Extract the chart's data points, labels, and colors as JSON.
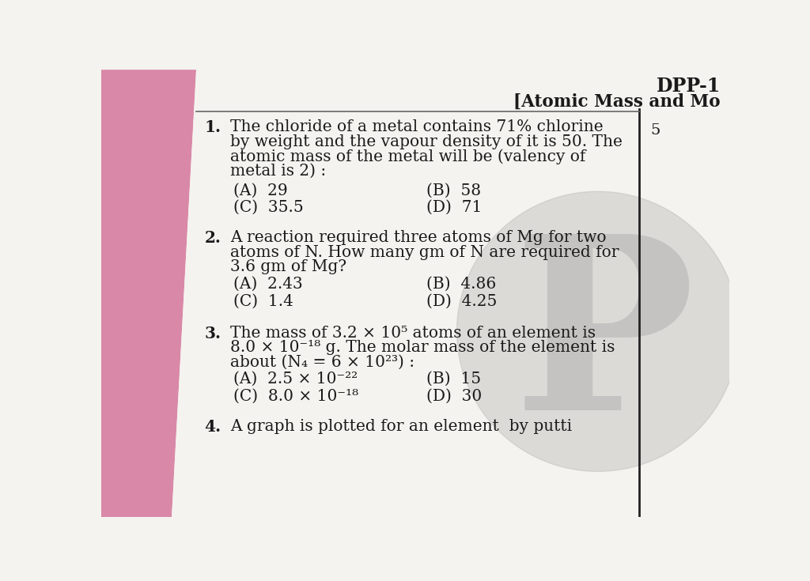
{
  "bg_color": "#f0ece4",
  "header_title": "DPP-1",
  "header_subtitle": "[Atomic Mass and Mo",
  "q1_num": "1.",
  "q1_text_line1": "The chloride of a metal contains 71% chlorine",
  "q1_text_line2": "by weight and the vapour density of it is 50. The",
  "q1_text_line3": "atomic mass of the metal will be (valency of",
  "q1_text_line4": "metal is 2) :",
  "q1_optA": "(A)  29",
  "q1_optB": "(B)  58",
  "q1_optC": "(C)  35.5",
  "q1_optD": "(D)  71",
  "q2_num": "2.",
  "q2_text_line1": "A reaction required three atoms of Mg for two",
  "q2_text_line2": "atoms of N. How many gm of N are required for",
  "q2_text_line3": "3.6 gm of Mg?",
  "q2_optA": "(A)  2.43",
  "q2_optB": "(B)  4.86",
  "q2_optC": "(C)  1.4",
  "q2_optD": "(D)  4.25",
  "q3_num": "3.",
  "q3_text_line1": "The mass of 3.2 × 10⁵ atoms of an element is",
  "q3_text_line2": "8.0 × 10⁻¹⁸ g. The molar mass of the element is",
  "q3_text_line3": "about (N₄ = 6 × 10²³) :",
  "q3_optA": "(A)  2.5 × 10⁻²²",
  "q3_optB": "(B)  15",
  "q3_optC": "(C)  8.0 × 10⁻¹⁸",
  "q3_optD": "(D)  30",
  "q4_num": "4.",
  "q4_text": "A graph is plotted for an element  by putti",
  "right_col_num": "5",
  "text_color": "#1a1a1a",
  "pink_color": "#d988a8",
  "watermark_gray": "#b0aeac",
  "page_white": "#f5f3ef",
  "divider_color": "#666666",
  "vertical_line_color": "#222222",
  "font_size": 14.5
}
